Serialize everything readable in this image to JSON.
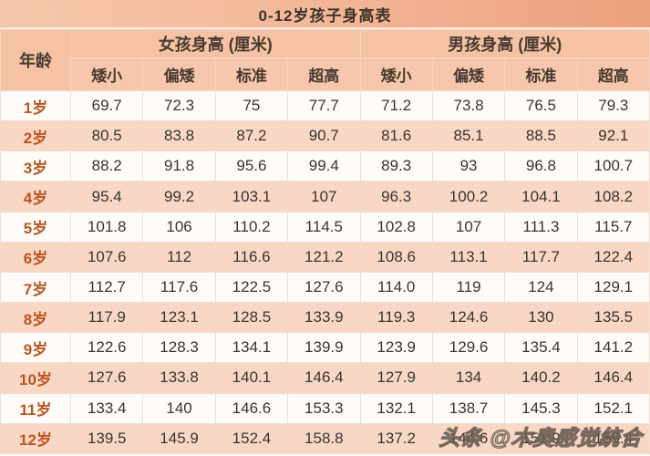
{
  "title": "0-12岁孩子身高表",
  "watermark": "头条 @木奥感觉统合",
  "colors": {
    "title_bar_left": "#f6c7ab",
    "title_bar_right": "#eca07d",
    "header_bg": "#f5c2a4",
    "row_pink": "#f8d7c4",
    "row_white": "#fefbf8",
    "age_text": "#b8581f",
    "cell_text": "#3a3530"
  },
  "chart_data": {
    "type": "table",
    "title": "0-12岁孩子身高表",
    "column_groups": [
      "年龄",
      "女孩身高 (厘米)",
      "男孩身高 (厘米)"
    ],
    "sub_columns": [
      "矮小",
      "偏矮",
      "标准",
      "超高"
    ],
    "rows": [
      {
        "age": "1岁",
        "girl": [
          "69.7",
          "72.3",
          "75",
          "77.7"
        ],
        "boy": [
          "71.2",
          "73.8",
          "76.5",
          "79.3"
        ]
      },
      {
        "age": "2岁",
        "girl": [
          "80.5",
          "83.8",
          "87.2",
          "90.7"
        ],
        "boy": [
          "81.6",
          "85.1",
          "88.5",
          "92.1"
        ]
      },
      {
        "age": "3岁",
        "girl": [
          "88.2",
          "91.8",
          "95.6",
          "99.4"
        ],
        "boy": [
          "89.3",
          "93",
          "96.8",
          "100.7"
        ]
      },
      {
        "age": "4岁",
        "girl": [
          "95.4",
          "99.2",
          "103.1",
          "107"
        ],
        "boy": [
          "96.3",
          "100.2",
          "104.1",
          "108.2"
        ]
      },
      {
        "age": "5岁",
        "girl": [
          "101.8",
          "106",
          "110.2",
          "114.5"
        ],
        "boy": [
          "102.8",
          "107",
          "111.3",
          "115.7"
        ]
      },
      {
        "age": "6岁",
        "girl": [
          "107.6",
          "112",
          "116.6",
          "121.2"
        ],
        "boy": [
          "108.6",
          "113.1",
          "117.7",
          "122.4"
        ]
      },
      {
        "age": "7岁",
        "girl": [
          "112.7",
          "117.6",
          "122.5",
          "127.6"
        ],
        "boy": [
          "114.0",
          "119",
          "124",
          "129.1"
        ]
      },
      {
        "age": "8岁",
        "girl": [
          "117.9",
          "123.1",
          "128.5",
          "133.9"
        ],
        "boy": [
          "119.3",
          "124.6",
          "130",
          "135.5"
        ]
      },
      {
        "age": "9岁",
        "girl": [
          "122.6",
          "128.3",
          "134.1",
          "139.9"
        ],
        "boy": [
          "123.9",
          "129.6",
          "135.4",
          "141.2"
        ]
      },
      {
        "age": "10岁",
        "girl": [
          "127.6",
          "133.8",
          "140.1",
          "146.4"
        ],
        "boy": [
          "127.9",
          "134",
          "140.2",
          "146.4"
        ]
      },
      {
        "age": "11岁",
        "girl": [
          "133.4",
          "140",
          "146.6",
          "153.3"
        ],
        "boy": [
          "132.1",
          "138.7",
          "145.3",
          "152.1"
        ]
      },
      {
        "age": "12岁",
        "girl": [
          "139.5",
          "145.9",
          "152.4",
          "158.8"
        ],
        "boy": [
          "137.2",
          "144.6",
          "151.9",
          "159.4"
        ]
      }
    ]
  }
}
